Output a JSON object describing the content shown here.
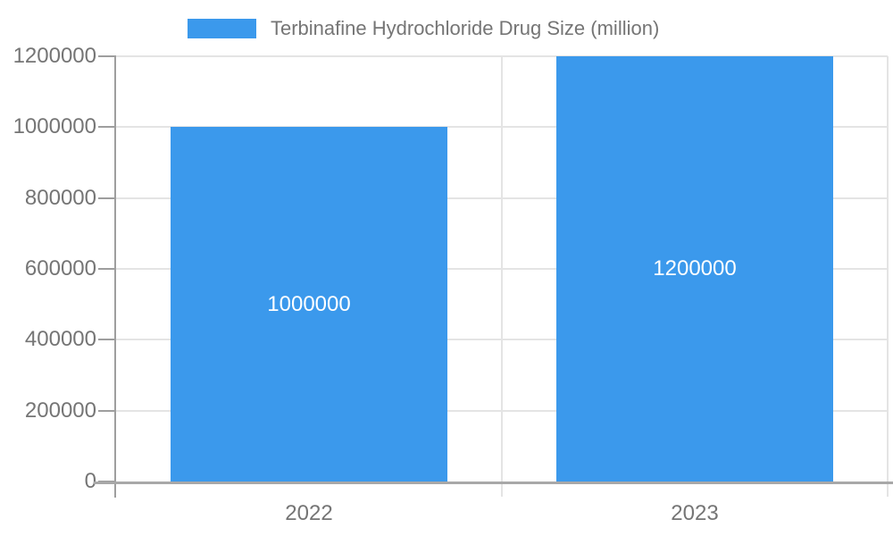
{
  "legend": {
    "label": "Terbinafine Hydrochloride Drug Size (million)"
  },
  "colors": {
    "bar": "#3b99ec",
    "grid": "#e4e4e4",
    "axis": "#9e9e9e",
    "baseline": "#a8a8a8",
    "tick_text": "#757575",
    "bar_label_text": "#ffffff",
    "background": "#ffffff"
  },
  "chart_data": {
    "type": "bar",
    "title": "",
    "xlabel": "",
    "ylabel": "",
    "categories": [
      "2022",
      "2023"
    ],
    "series": [
      {
        "name": "Terbinafine Hydrochloride Drug Size (million)",
        "values": [
          1000000,
          1200000
        ]
      }
    ],
    "bar_labels": [
      "1000000",
      "1200000"
    ],
    "ylim": [
      0,
      1200000
    ],
    "yticks": [
      0,
      200000,
      400000,
      600000,
      800000,
      1000000,
      1200000
    ],
    "ytick_labels": [
      "0",
      "200000",
      "400000",
      "600000",
      "800000",
      "1000000",
      "1200000"
    ],
    "legend_position": "top",
    "grid": true
  }
}
